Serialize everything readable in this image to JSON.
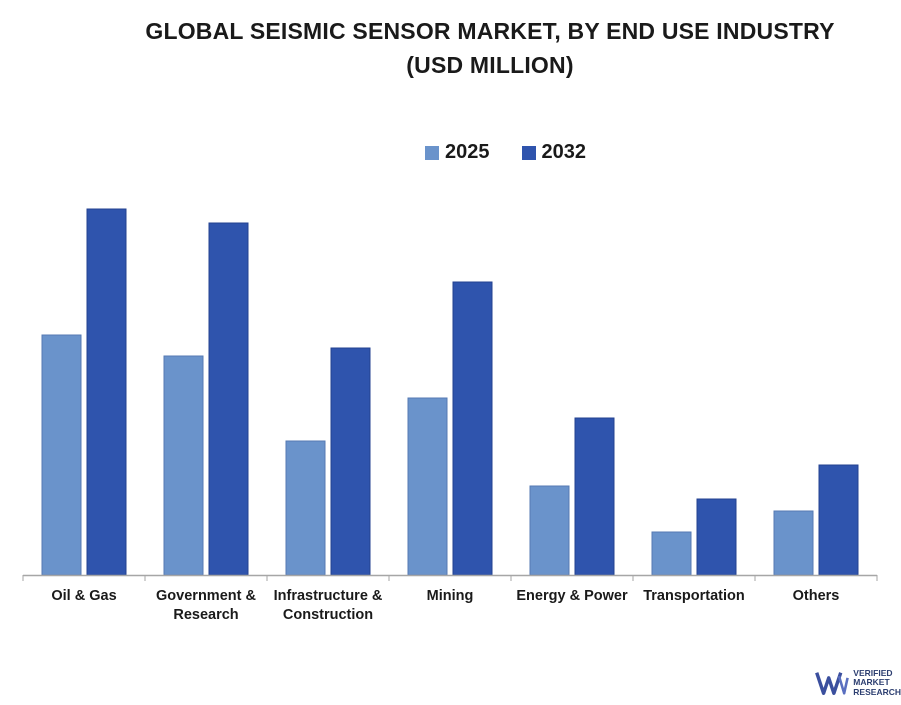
{
  "chart_data": {
    "type": "bar",
    "title_line1": "GLOBAL SEISMIC SENSOR MARKET, BY END USE INDUSTRY",
    "title_line2": "(USD MILLION)",
    "categories": [
      "Oil & Gas",
      "Government & Research",
      "Infrastructure & Construction",
      "Mining",
      "Energy & Power",
      "Transportation",
      "Others"
    ],
    "category_lines": [
      [
        "Oil & Gas"
      ],
      [
        "Government &",
        "Research"
      ],
      [
        "Infrastructure &",
        "Construction"
      ],
      [
        "Mining"
      ],
      [
        "Energy & Power"
      ],
      [
        "Transportation"
      ],
      [
        "Others"
      ]
    ],
    "series": [
      {
        "name": "2025",
        "color": "#6a93cb",
        "values": [
          240,
          219,
          134,
          177,
          89,
          43,
          64
        ]
      },
      {
        "name": "2032",
        "color": "#2f54ad",
        "values": [
          366,
          352,
          227,
          293,
          157,
          76,
          110
        ]
      }
    ],
    "ylim": [
      0,
      400
    ],
    "xlabel": "",
    "ylabel": "",
    "grid": false,
    "legend_position": "top-center"
  },
  "logo": {
    "line1": "VERIFIED",
    "line2": "MARKET",
    "line3": "RESEARCH",
    "mark": "VM"
  }
}
